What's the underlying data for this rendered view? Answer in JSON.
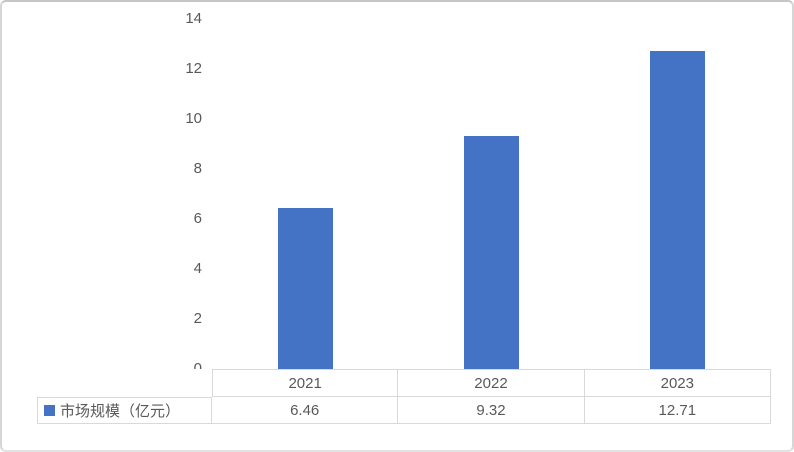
{
  "chart_data": {
    "type": "bar",
    "categories": [
      "2021",
      "2022",
      "2023"
    ],
    "series": [
      {
        "name": "市场规模（亿元）",
        "values": [
          6.46,
          9.32,
          12.71
        ]
      }
    ],
    "title": "",
    "xlabel": "",
    "ylabel": "",
    "ylim": [
      0,
      14
    ],
    "yticks": [
      0,
      2,
      4,
      6,
      8,
      10,
      12,
      14
    ],
    "gridlines": false,
    "axis_lines": false,
    "legend_position": "data-table-left",
    "data_table_shown": true,
    "value_row": [
      "6.46",
      "9.32",
      "12.71"
    ]
  },
  "colors": {
    "bar": "#4472C4",
    "legend_marker": "#4472C4",
    "text": "#595959",
    "table_border": "#D9D9D9",
    "frame_border": "#D6D6D6",
    "background": "#FFFFFF"
  },
  "legend": {
    "label": "市场规模（亿元）",
    "marker": "square"
  }
}
